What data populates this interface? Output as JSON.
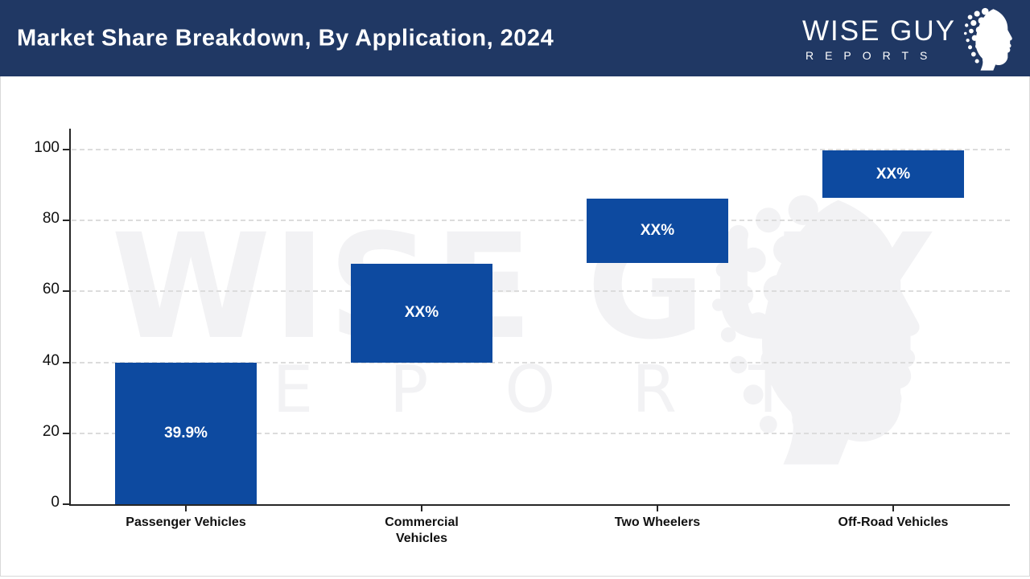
{
  "header": {
    "title": "Market Share Breakdown, By Application, 2024",
    "background_color": "#203864",
    "logo": {
      "line1": "WISE GUY",
      "line2": "REPORTS"
    }
  },
  "watermark": {
    "line1": "WISE GUY",
    "line2": "REPORTS"
  },
  "chart_data": {
    "type": "bar",
    "subtype": "floating-stacked-progression-columns",
    "title": "Market Share Breakdown, By Application, 2024",
    "categories": [
      "Passenger Vehicles",
      "Commercial Vehicles",
      "Two Wheelers",
      "Off-Road Vehicles"
    ],
    "category_label_lines": [
      [
        "Passenger Vehicles"
      ],
      [
        "Commercial",
        "Vehicles"
      ],
      [
        "Two Wheelers"
      ],
      [
        "Off-Road Vehicles"
      ]
    ],
    "segments": [
      {
        "category": "Passenger Vehicles",
        "from": 0,
        "to": 40,
        "label": "39.9%"
      },
      {
        "category": "Commercial Vehicles",
        "from": 40,
        "to": 67.9,
        "label": "XX%"
      },
      {
        "category": "Two Wheelers",
        "from": 68.1,
        "to": 86.2,
        "label": "XX%"
      },
      {
        "category": "Off-Road Vehicles",
        "from": 86.3,
        "to": 99.8,
        "label": "XX%"
      }
    ],
    "xlabel": "",
    "ylabel": "",
    "ylim": [
      0,
      100
    ],
    "yticks": [
      0,
      20,
      40,
      60,
      80,
      100
    ],
    "grid": {
      "horizontal": true,
      "style": "dashed"
    },
    "legend": false,
    "colors": {
      "bar": "#0d4aa0",
      "bar_label": "#ffffff",
      "axis": "#262626",
      "tick_label": "#111111",
      "grid": "#dcdcdc",
      "watermark": "#f2f2f4",
      "header_bg": "#203864",
      "header_text": "#ffffff"
    }
  }
}
